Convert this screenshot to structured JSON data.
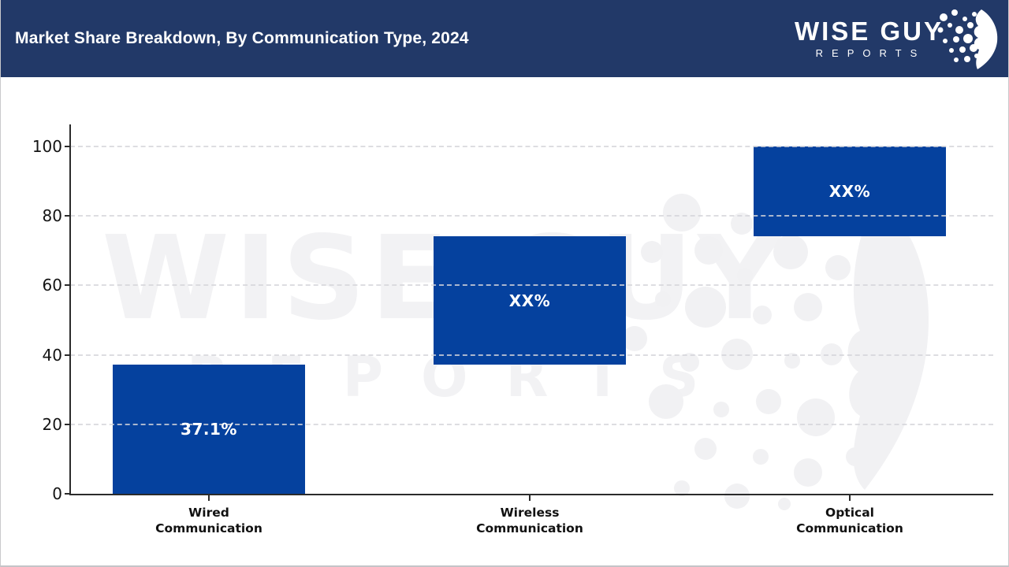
{
  "header": {
    "title": "Market Share Breakdown, By Communication Type, 2024",
    "bg_color": "#223968",
    "logo": {
      "wordmark": "WISE GUY",
      "subtext": "REPORTS"
    }
  },
  "watermark": {
    "line1": "WISE GUY",
    "line2": "REPORTS"
  },
  "chart_data": {
    "type": "bar",
    "variant": "waterfall",
    "title": "Market Share Breakdown, By Communication Type, 2024",
    "categories": [
      {
        "line1": "Wired",
        "line2": "Communication"
      },
      {
        "line1": "Wireless",
        "line2": "Communication"
      },
      {
        "line1": "Optical",
        "line2": "Communication"
      }
    ],
    "segments": [
      {
        "category": "Wired Communication",
        "start": 0,
        "end": 37.1,
        "label": "37.1%"
      },
      {
        "category": "Wireless Communication",
        "start": 37.1,
        "end": 74.2,
        "label": "XX%"
      },
      {
        "category": "Optical Communication",
        "start": 74.2,
        "end": 100,
        "label": "XX%"
      }
    ],
    "ylim": [
      0,
      100
    ],
    "yticks": [
      0,
      20,
      40,
      60,
      80,
      100
    ],
    "grid": "horizontal-dashed",
    "legend": null,
    "bar_color": "#05419E",
    "bar_label_color": "#ffffff",
    "axis_color": "#2b2b2b",
    "gridline_color": "#d5d5d9",
    "watermark_color": "#f2f2f4"
  }
}
